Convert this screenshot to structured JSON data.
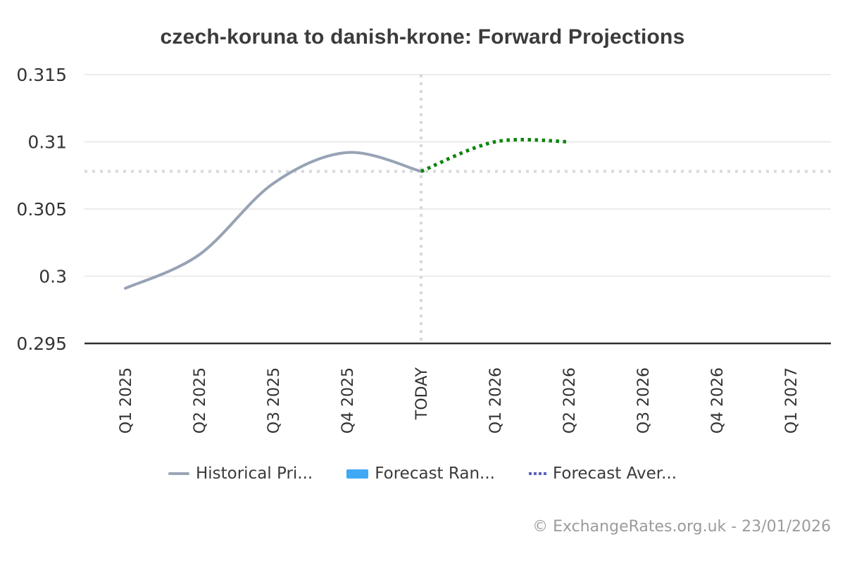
{
  "title": "czech-koruna to danish-krone: Forward Projections",
  "attribution": "© ExchangeRates.org.uk - 23/01/2026",
  "legend": [
    {
      "label": "Historical Pri...",
      "swatch": "line",
      "color": "#9aa5b6"
    },
    {
      "label": "Forecast Ran...",
      "swatch": "rect",
      "color": "#3fa9f5"
    },
    {
      "label": "Forecast Aver...",
      "swatch": "dots",
      "color": "#5c5fc4"
    }
  ],
  "chart_data": {
    "type": "line",
    "title": "czech-koruna to danish-krone: Forward Projections",
    "x_categories": [
      "Q1 2025",
      "Q2 2025",
      "Q3 2025",
      "Q4 2025",
      "TODAY",
      "Q1 2026",
      "Q2 2026",
      "Q3 2026",
      "Q4 2026",
      "Q1 2027"
    ],
    "y_ticks": [
      0.315,
      0.31,
      0.305,
      0.3,
      0.295
    ],
    "ylim": [
      0.295,
      0.315
    ],
    "grid": true,
    "legend_position": "bottom",
    "series": [
      {
        "name": "Historical Price",
        "style": "solid",
        "color": "#97a3b5",
        "x": [
          "Q1 2025",
          "Q2 2025",
          "Q3 2025",
          "Q4 2025",
          "TODAY"
        ],
        "values": [
          0.2991,
          0.3016,
          0.3069,
          0.3092,
          0.3078
        ]
      },
      {
        "name": "Forecast Average",
        "style": "dotted",
        "color": "#0e840e",
        "x": [
          "TODAY",
          "Q1 2026",
          "Q2 2026"
        ],
        "values": [
          0.3078,
          0.31,
          0.31
        ]
      }
    ],
    "reference_lines": {
      "vertical_at": "TODAY",
      "horizontal_value": 0.3078,
      "color": "#d8d8dd",
      "style": "dotted"
    },
    "colors": {
      "gridline": "#e6e6e6",
      "axis_line": "#2f2f2f",
      "tick_text": "#333333"
    }
  }
}
